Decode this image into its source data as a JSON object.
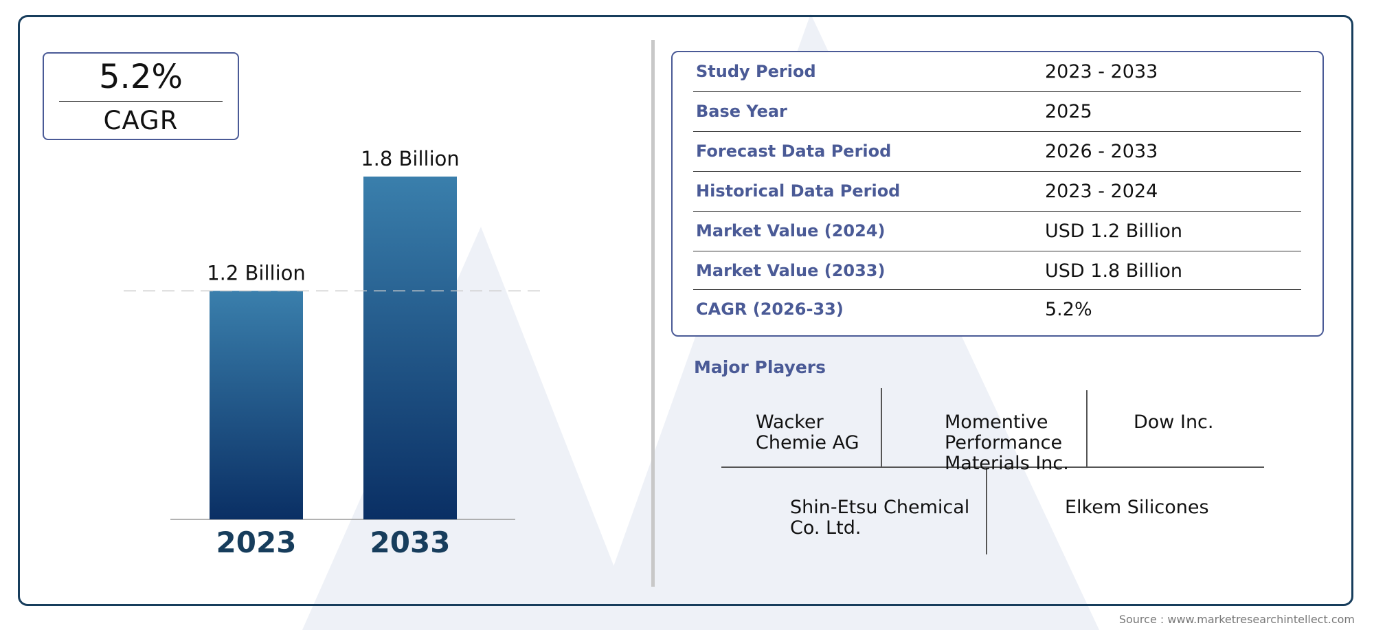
{
  "cagr": {
    "value": "5.2%",
    "label": "CAGR"
  },
  "chart_data": {
    "type": "bar",
    "categories": [
      "2023",
      "2033"
    ],
    "values": [
      1.2,
      1.8
    ],
    "value_labels": [
      "1.2 Billion",
      "1.8 Billion"
    ],
    "unit": "Billion",
    "ylim": [
      0,
      1.8
    ],
    "grid": false,
    "legend": "none",
    "reference_line": {
      "value": 1.2,
      "style": "dashed"
    },
    "colors": {
      "bar_top": "#3a7fac",
      "bar_bottom": "#0a2f64",
      "category_label": "#173d5c"
    }
  },
  "study_info": {
    "rows": [
      {
        "label": "Study Period",
        "value": "2023 - 2033"
      },
      {
        "label": "Base Year",
        "value": "2025"
      },
      {
        "label": "Forecast Data Period",
        "value": "2026 - 2033"
      },
      {
        "label": "Historical Data Period",
        "value": "2023 - 2024"
      },
      {
        "label": "Market Value (2024)",
        "value": "USD 1.2 Billion"
      },
      {
        "label": "Market Value (2033)",
        "value": "USD 1.8 Billion"
      },
      {
        "label": "CAGR (2026-33)",
        "value": "5.2%"
      }
    ]
  },
  "major_players": {
    "title": "Major Players",
    "players": [
      "Wacker Chemie AG",
      "Momentive Performance Materials Inc.",
      "Dow Inc.",
      "Shin-Etsu Chemical Co. Ltd.",
      "Elkem Silicones"
    ]
  },
  "source": "Source : www.marketresearchintellect.com",
  "colors": {
    "frame": "#173d5c",
    "accent": "#4a5a96",
    "watermark": "#eef1f7"
  }
}
